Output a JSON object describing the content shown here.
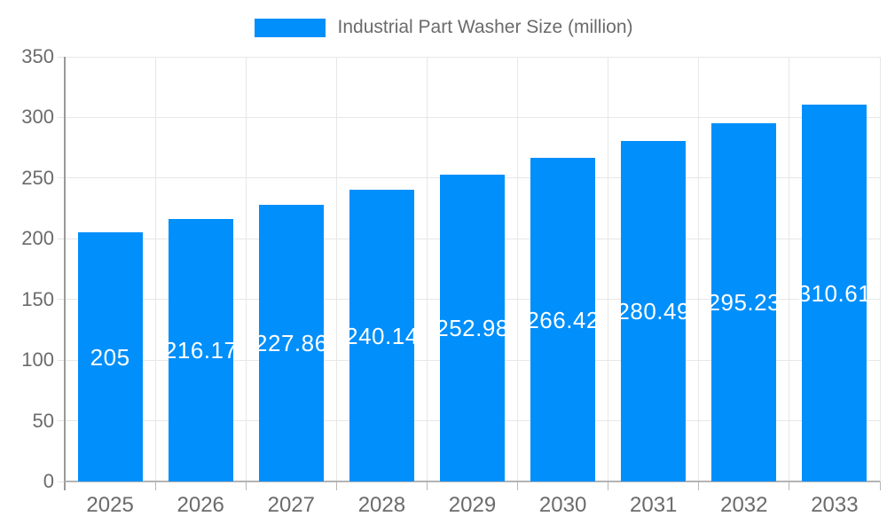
{
  "chart_data": {
    "type": "bar",
    "title": "",
    "legend_label": "Industrial Part Washer Size (million)",
    "legend_position": "top",
    "categories": [
      "2025",
      "2026",
      "2027",
      "2028",
      "2029",
      "2030",
      "2031",
      "2032",
      "2033"
    ],
    "series": [
      {
        "name": "Industrial Part Washer Size (million)",
        "values": [
          205,
          216.17,
          227.86,
          240.14,
          252.98,
          266.42,
          280.49,
          295.23,
          310.61
        ]
      }
    ],
    "value_labels": [
      "205",
      "216.17",
      "227.86",
      "240.14",
      "252.98",
      "266.42",
      "280.49",
      "295.23",
      "310.61"
    ],
    "xlabel": "",
    "ylabel": "",
    "ylim": [
      0,
      350
    ],
    "ytick_step": 50,
    "ytick_labels": [
      "0",
      "50",
      "100",
      "150",
      "200",
      "250",
      "300",
      "350"
    ],
    "grid": true,
    "colors": {
      "bar": "#008FFB",
      "grid": "#e7e7e7",
      "x_axis_line": "#b3b3b3",
      "y_axis_line": "#999999",
      "tick": "#b6b6b6",
      "y_tick": "#e4e4e4",
      "axis_label": "#6b6b6b",
      "legend_text": "#6b6b6b",
      "value_label": "#ffffff",
      "background": "#ffffff"
    }
  }
}
